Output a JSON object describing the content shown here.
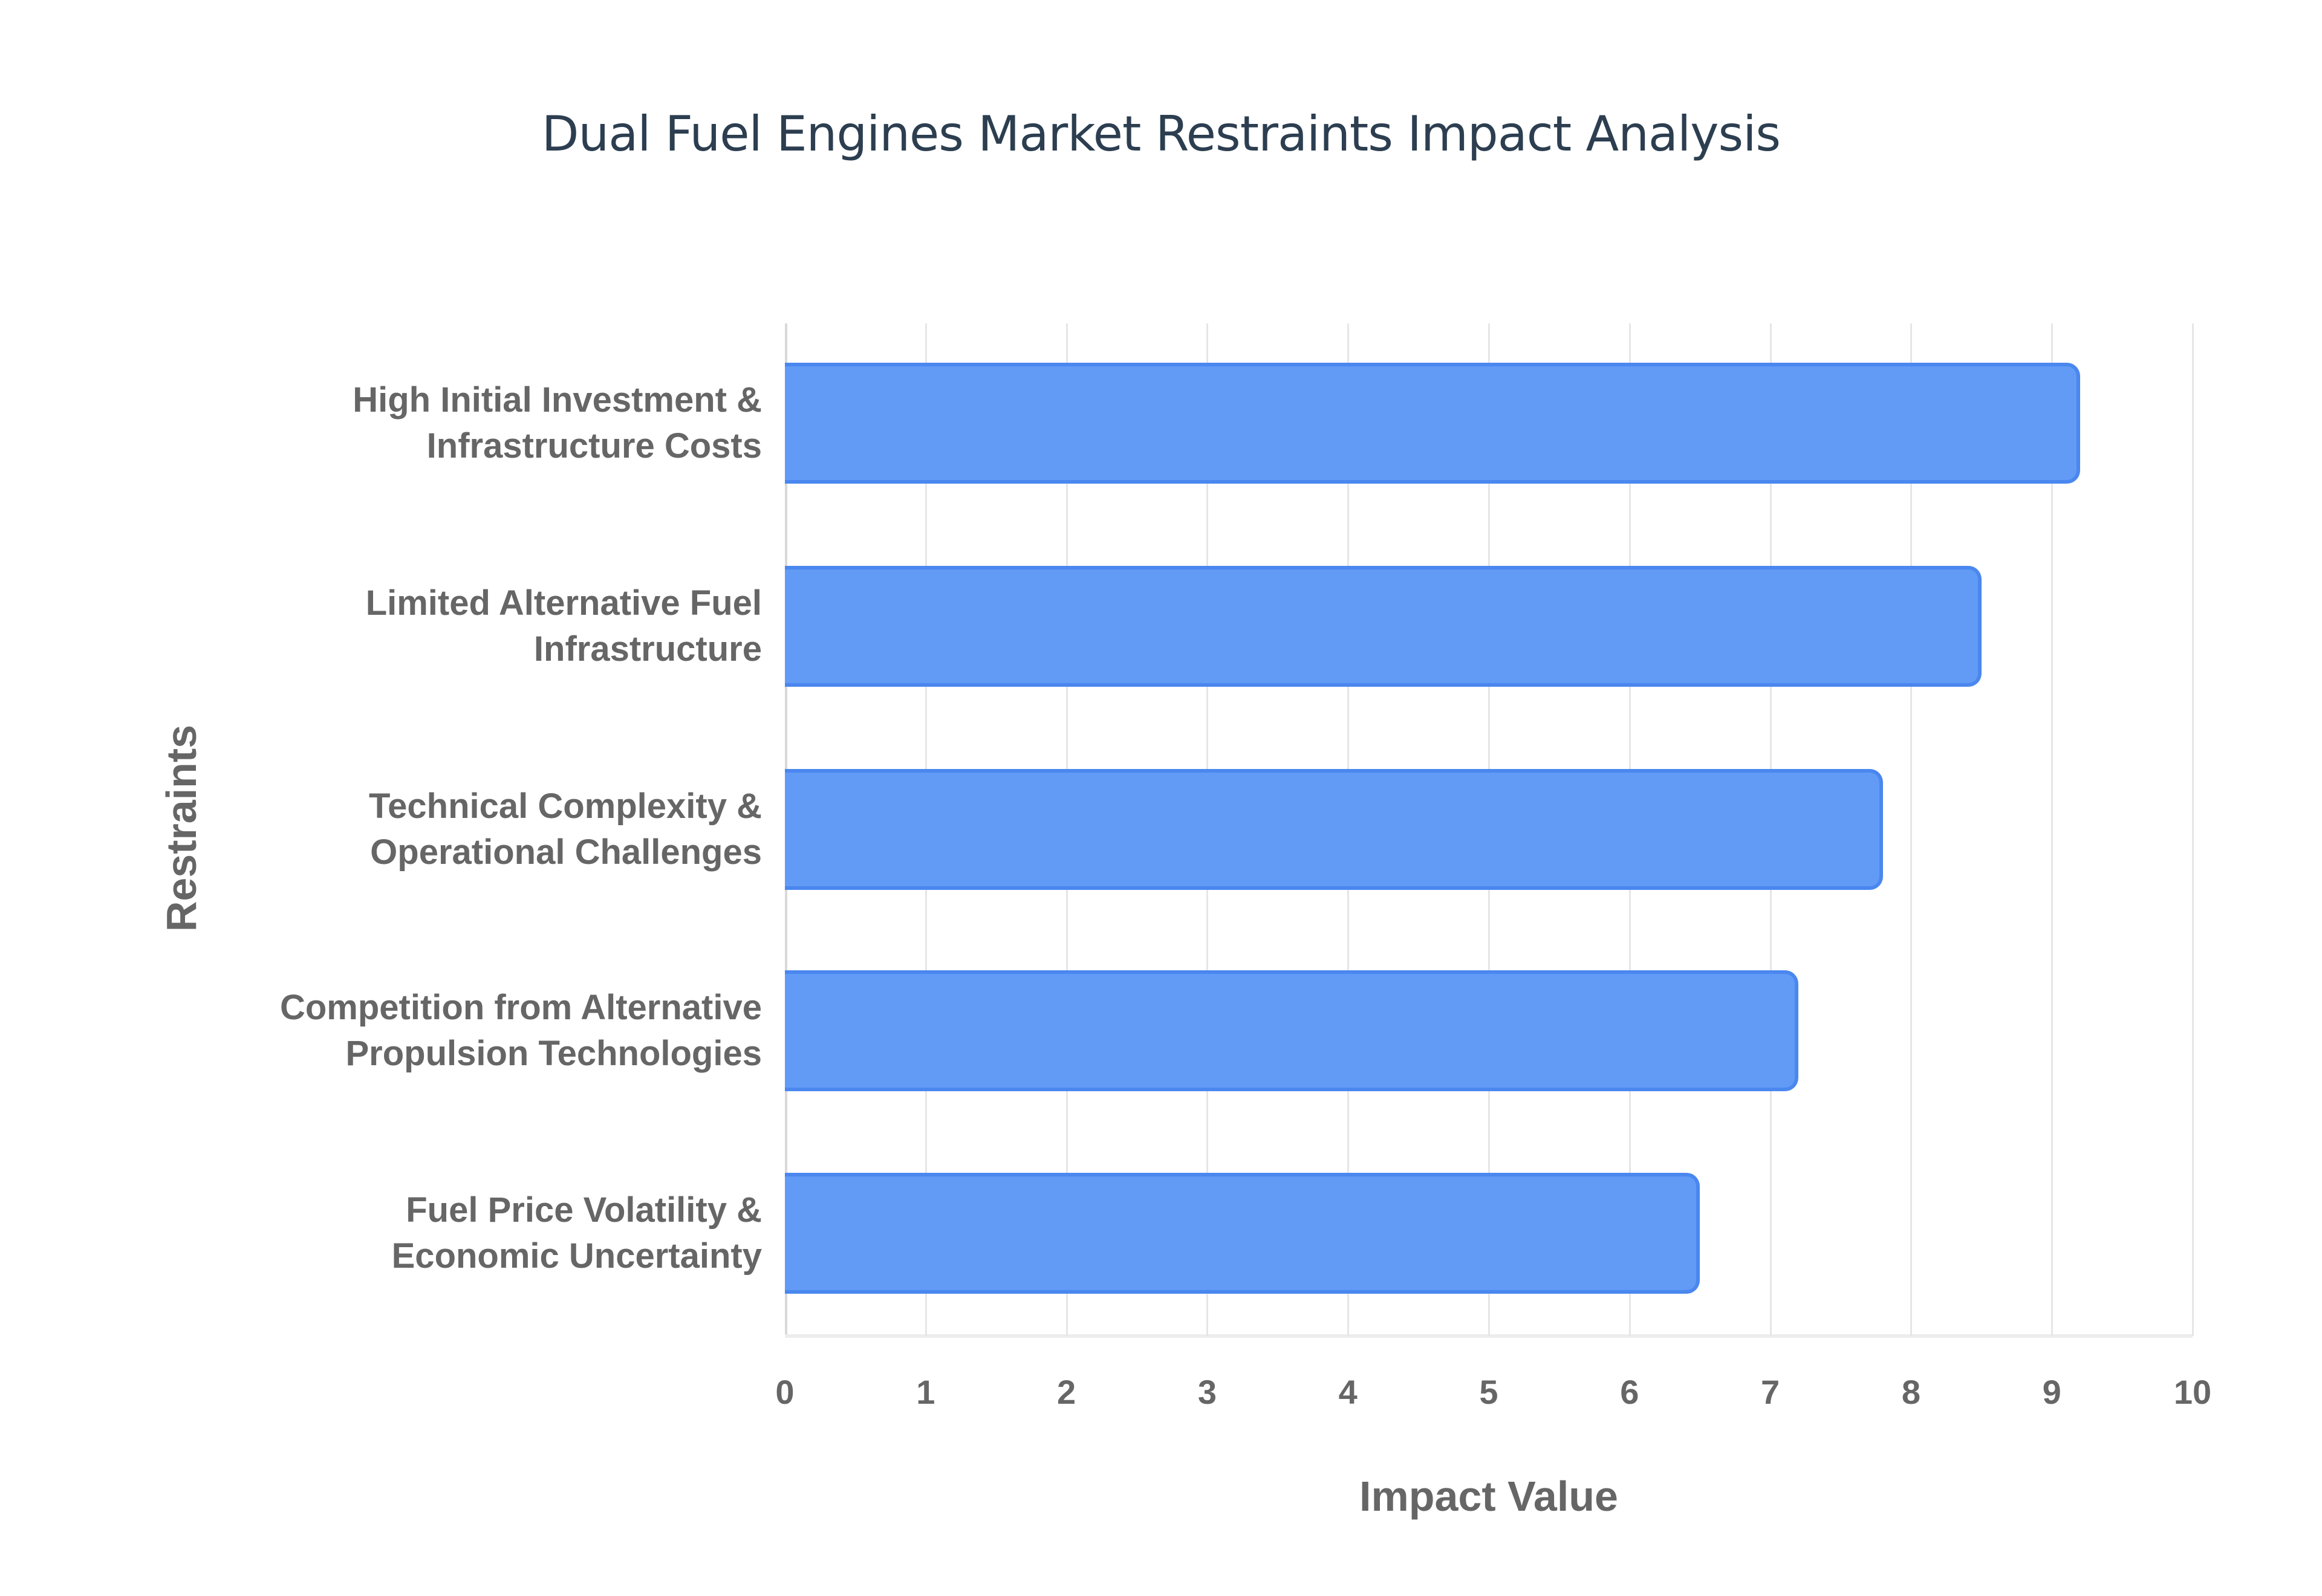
{
  "chart_data": {
    "type": "bar",
    "orientation": "horizontal",
    "title": "Dual Fuel Engines Market Restraints Impact Analysis",
    "xlabel": "Impact Value",
    "ylabel": "Restraints",
    "xlim": [
      0,
      10
    ],
    "x_ticks": [
      "0",
      "1",
      "2",
      "3",
      "4",
      "5",
      "6",
      "7",
      "8",
      "9",
      "10"
    ],
    "grid": true,
    "legend": null,
    "categories": [
      "High Initial Investment & Infrastructure Costs",
      "Limited Alternative Fuel Infrastructure",
      "Technical Complexity & Operational Challenges",
      "Competition from Alternative Propulsion Technologies",
      "Fuel Price Volatility & Economic Uncertainty"
    ],
    "category_lines": [
      [
        "High Initial Investment &",
        "Infrastructure Costs"
      ],
      [
        "Limited Alternative Fuel",
        "Infrastructure"
      ],
      [
        "Technical Complexity &",
        "Operational Challenges"
      ],
      [
        "Competition from Alternative",
        "Propulsion Technologies"
      ],
      [
        "Fuel Price Volatility &",
        "Economic Uncertainty"
      ]
    ],
    "values": [
      9.2,
      8.5,
      7.8,
      7.2,
      6.5
    ],
    "colors": {
      "bar_fill": "#629bf5",
      "bar_border": "#4a87ef",
      "title": "#2c3e50",
      "text": "#666666",
      "grid": "#e6e6e6"
    }
  }
}
